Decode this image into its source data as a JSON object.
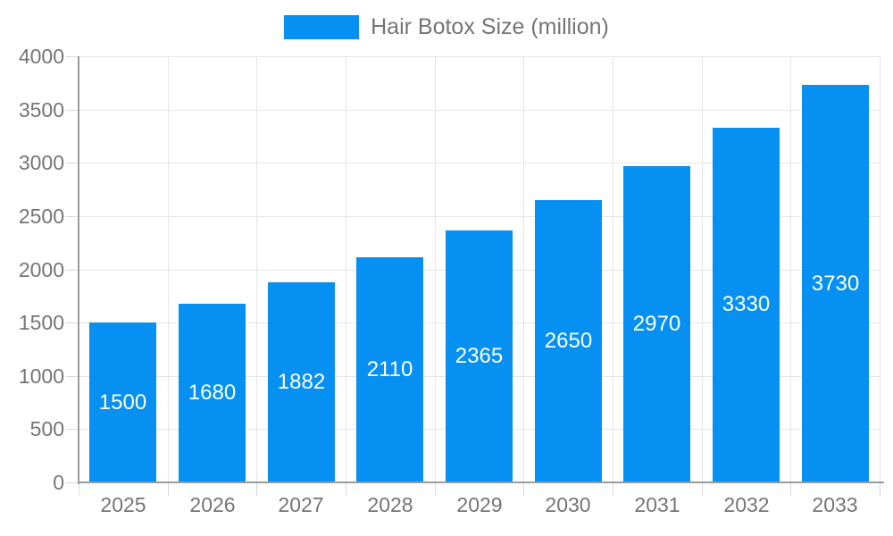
{
  "legend": {
    "label": "Hair Botox Size (million)"
  },
  "chart_data": {
    "type": "bar",
    "title": "Hair Botox Size (million)",
    "series_name": "Hair Botox Size (million)",
    "categories": [
      "2025",
      "2026",
      "2027",
      "2028",
      "2029",
      "2030",
      "2031",
      "2032",
      "2033"
    ],
    "values": [
      1500,
      1680,
      1882,
      2110,
      2365,
      2650,
      2970,
      3330,
      3730
    ],
    "value_labels": [
      "1500",
      "1680",
      "1882",
      "2110",
      "2365",
      "2650",
      "2970",
      "3330",
      "3730"
    ],
    "xlabel": "",
    "ylabel": "",
    "ylim": [
      0,
      4000
    ],
    "y_tick_step": 500,
    "y_tick_labels": [
      "0",
      "500",
      "1000",
      "1500",
      "2000",
      "2500",
      "3000",
      "3500",
      "4000"
    ],
    "grid": true,
    "legend_position": "top-center",
    "bar_width_ratio": 0.75,
    "colors": {
      "bar": "#0590f2",
      "grid": "#e6e6e6",
      "axis": "#9c9c9c",
      "tick": "#d9d9d9",
      "axis_text": "#757575",
      "value_text": "#ffffff"
    }
  }
}
